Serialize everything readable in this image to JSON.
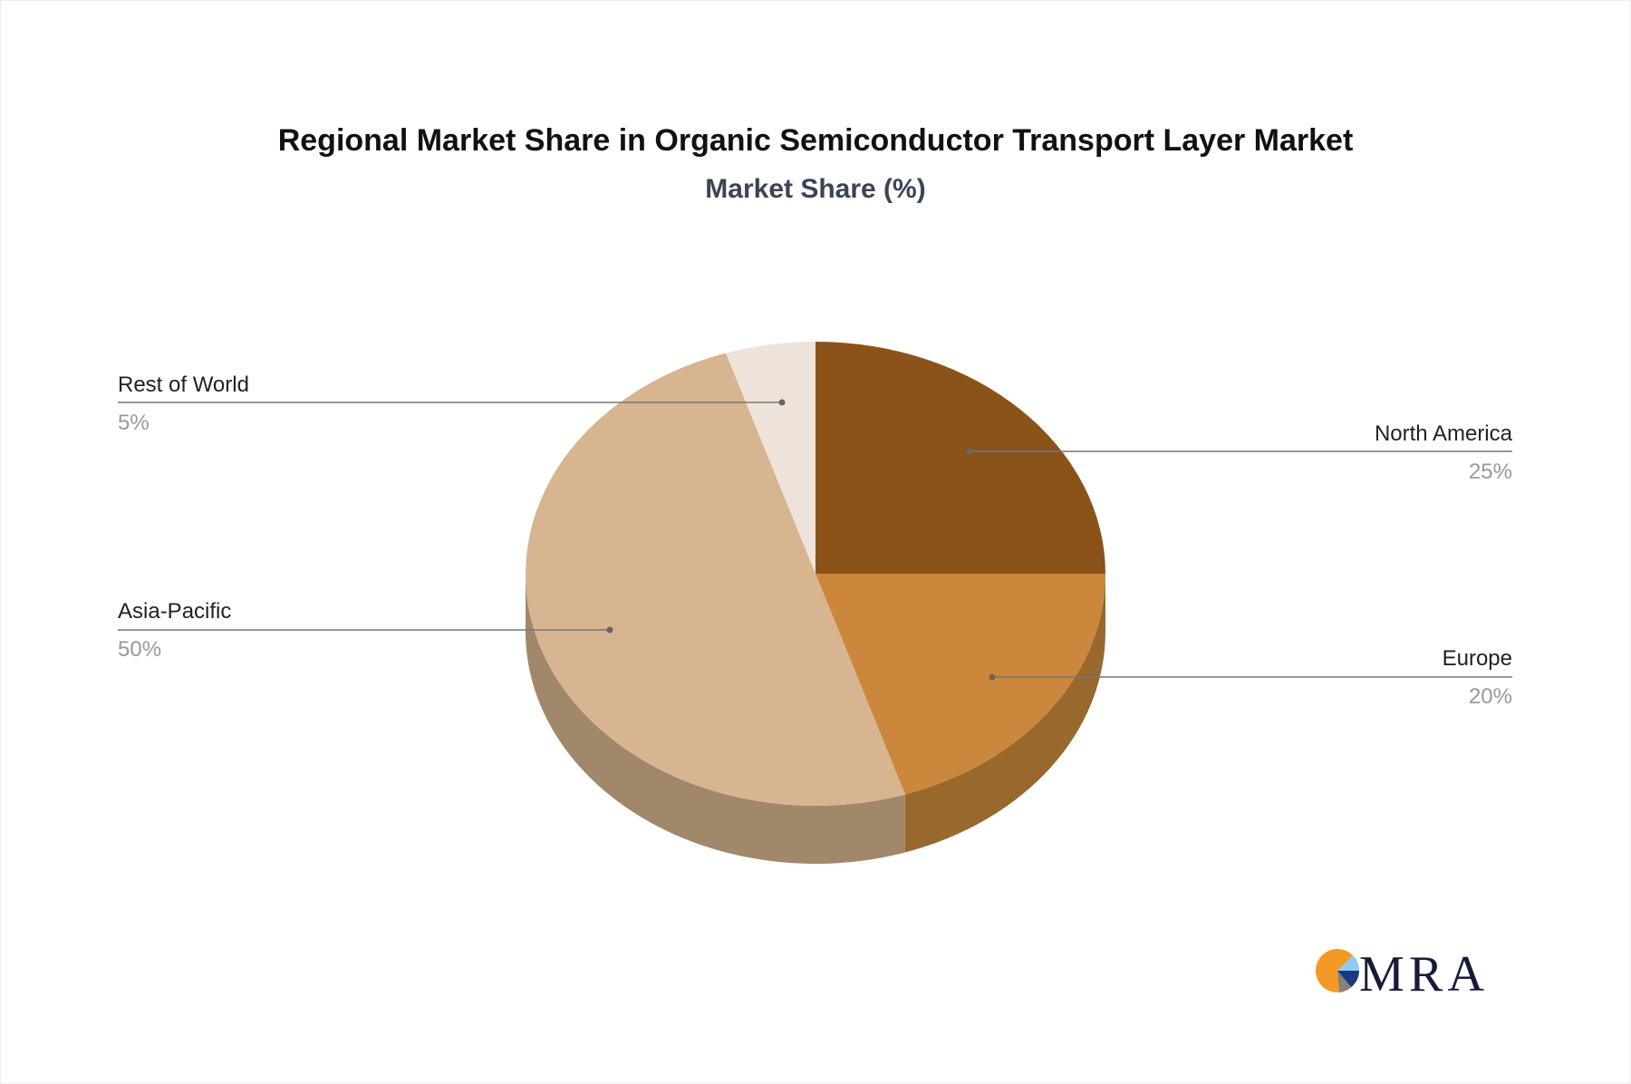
{
  "chart_data": {
    "type": "pie",
    "style": "3d",
    "title": "Regional Market Share in Organic Semiconductor Transport Layer Market",
    "subtitle": "Market Share (%)",
    "categories": [
      "North America",
      "Europe",
      "Asia-Pacific",
      "Rest of World"
    ],
    "values": [
      25,
      20,
      50,
      5
    ],
    "labels": [
      "25%",
      "20%",
      "50%",
      "5%"
    ],
    "colors": [
      "#8B5319",
      "#CB883C",
      "#D6B590",
      "#EEE3DA"
    ],
    "side_colors": [
      "#6E4214",
      "#98682C",
      "#A1886B",
      "#BDB2A9"
    ],
    "legend": "callout-labels"
  },
  "logo": {
    "text": "MRA"
  }
}
